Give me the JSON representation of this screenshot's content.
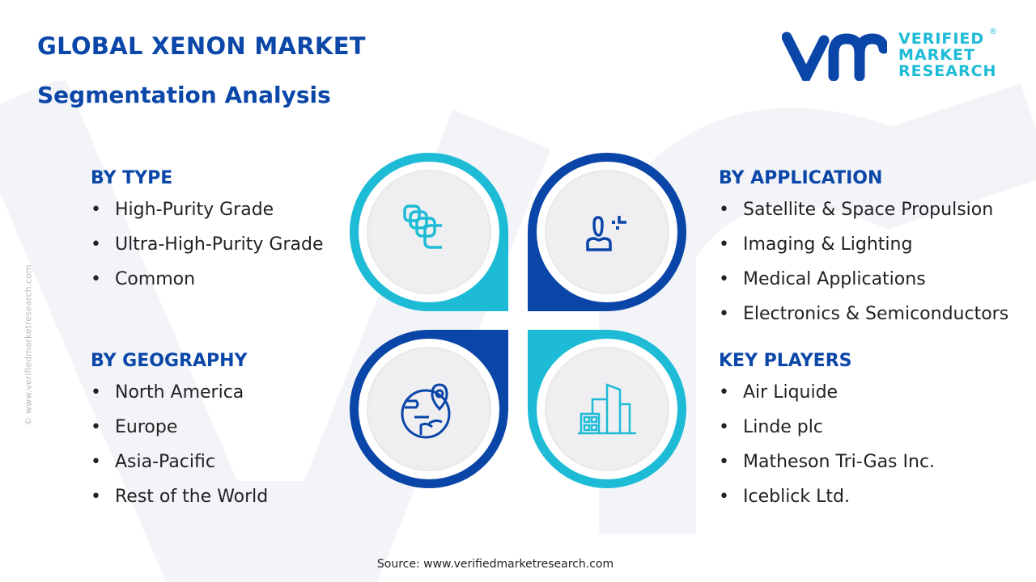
{
  "header": {
    "title": "GLOBAL XENON MARKET",
    "subtitle": "Segmentation Analysis"
  },
  "logo": {
    "text": [
      "VERIFIED",
      "MARKET",
      "RESEARCH"
    ],
    "mark": "vmr",
    "registered": "®"
  },
  "watermark": "© www.verifiedmarketresearch.com",
  "colors": {
    "primary": "#0a45a8",
    "accent": "#1dbbd6"
  },
  "sections": [
    {
      "title": "BY TYPE",
      "icon": "layers-icon",
      "items": [
        "High-Purity Grade",
        "Ultra-High-Purity Grade",
        "Common"
      ]
    },
    {
      "title": "BY APPLICATION",
      "icon": "user-icon",
      "items": [
        "Satellite & Space Propulsion",
        "Imaging & Lighting",
        "Medical Applications",
        "Electronics & Semiconductors"
      ]
    },
    {
      "title": "BY GEOGRAPHY",
      "icon": "globe-location-icon",
      "items": [
        "North America",
        "Europe",
        "Asia-Pacific",
        "Rest of the World"
      ]
    },
    {
      "title": "KEY PLAYERS",
      "icon": "buildings-icon",
      "items": [
        "Air Liquide",
        "Linde plc",
        "Matheson Tri-Gas Inc.",
        "Iceblick Ltd."
      ]
    }
  ],
  "footer": {
    "source": "Source: www.verifiedmarketresearch.com"
  }
}
